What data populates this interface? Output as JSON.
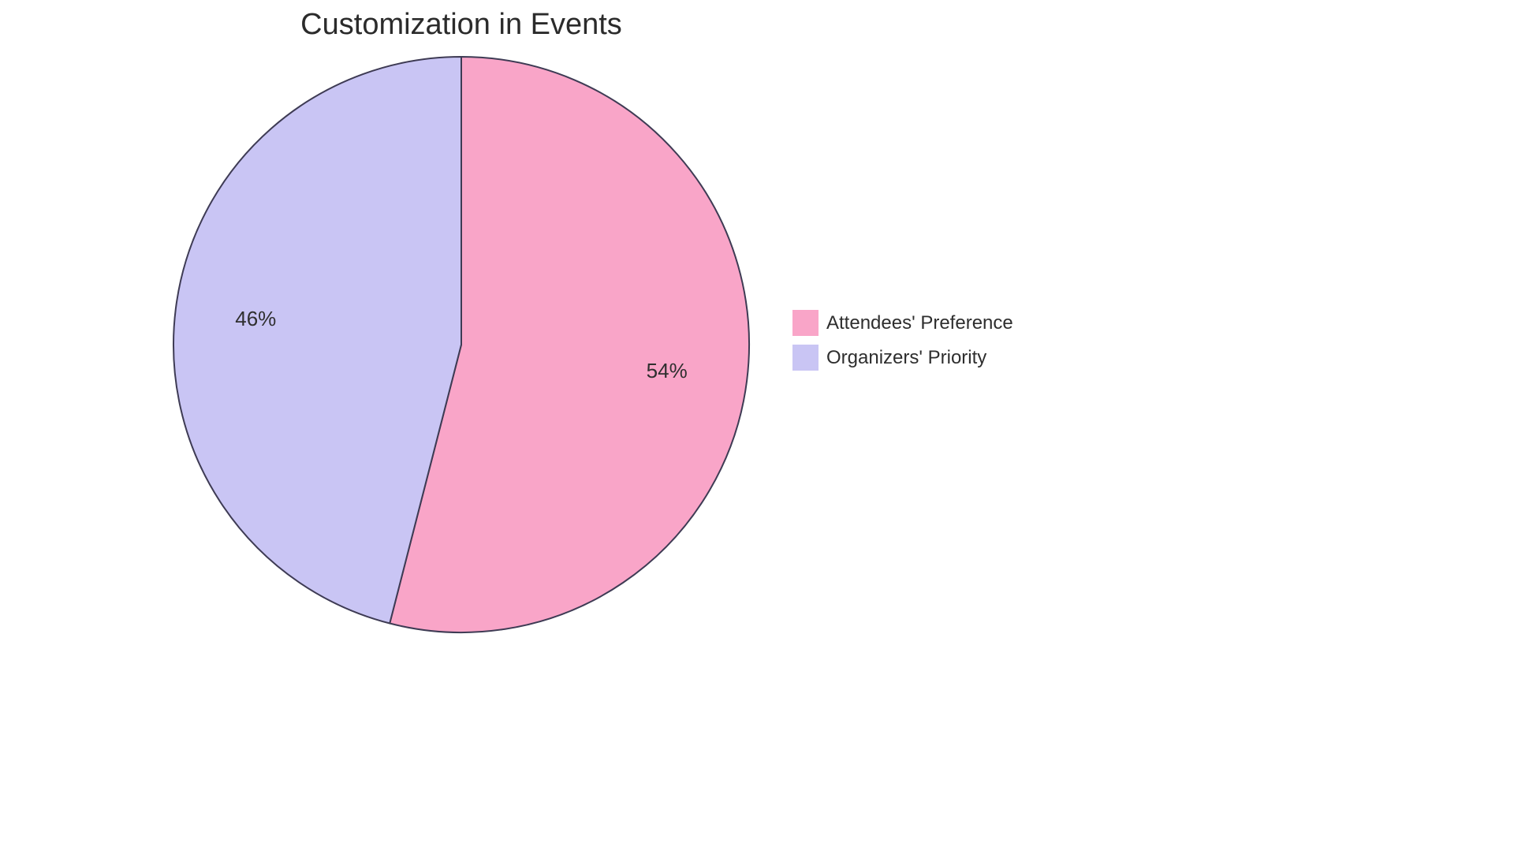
{
  "chart_data": {
    "type": "pie",
    "title": "Customization in Events",
    "labels": [
      "Attendees' Preference",
      "Organizers' Priority"
    ],
    "values": [
      54,
      46
    ],
    "slice_labels": [
      "54%",
      "46%"
    ],
    "colors": [
      "#F9A5C8",
      "#C9C5F4"
    ],
    "border_color": "#3E3B54",
    "legend_position": "right",
    "start_angle_deg": -90,
    "direction": "clockwise"
  }
}
